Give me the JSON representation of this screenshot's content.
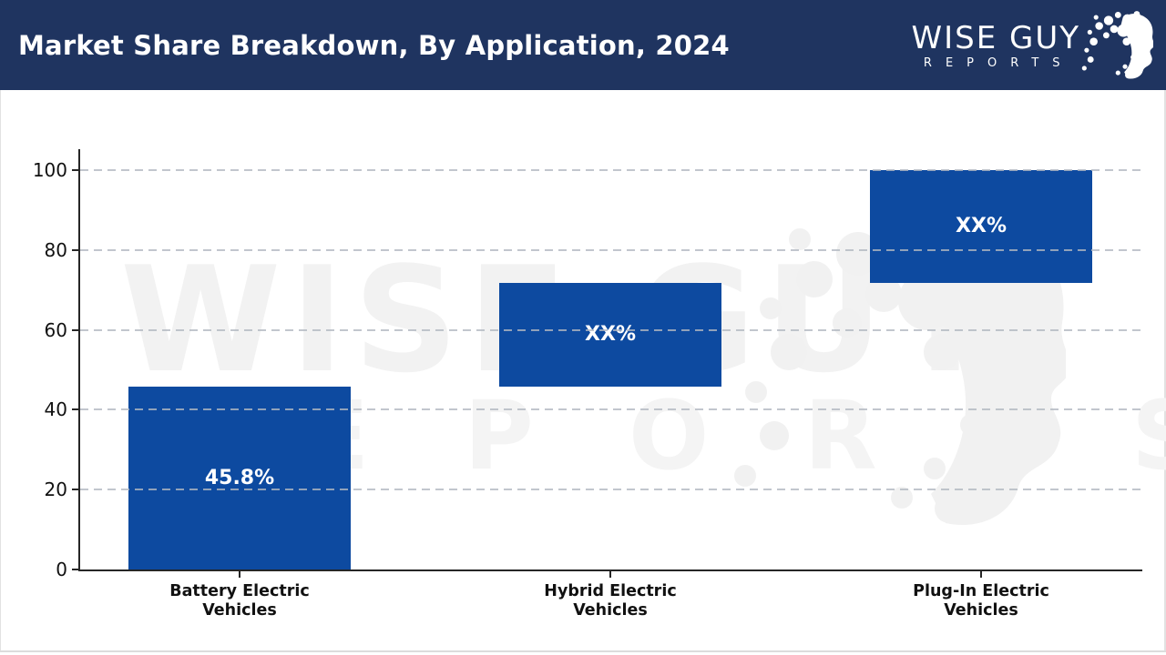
{
  "header": {
    "title": "Market Share Breakdown, By Application, 2024",
    "background_color": "#1f3460",
    "logo": {
      "line1": "WISE GUY",
      "line2": "REPORTS"
    }
  },
  "watermark": {
    "line1": "WISE GUY",
    "line2": "R E P O R T S"
  },
  "chart_data": {
    "type": "bar",
    "subtype": "waterfall",
    "title": "Market Share Breakdown, By Application, 2024",
    "categories": [
      "Battery Electric Vehicles",
      "Hybrid Electric Vehicles",
      "Plug-In Electric Vehicles"
    ],
    "category_lines": [
      [
        "Battery Electric",
        "Vehicles"
      ],
      [
        "Hybrid Electric",
        "Vehicles"
      ],
      [
        "Plug-In Electric",
        "Vehicles"
      ]
    ],
    "segments": [
      {
        "category": "Battery Electric Vehicles",
        "start": 0,
        "end": 45.8,
        "label": "45.8%"
      },
      {
        "category": "Hybrid Electric Vehicles",
        "start": 45.8,
        "end": 71.8,
        "label": "XX%"
      },
      {
        "category": "Plug-In Electric Vehicles",
        "start": 71.8,
        "end": 100,
        "label": "XX%"
      }
    ],
    "y_ticks": [
      0,
      20,
      40,
      60,
      80,
      100
    ],
    "ylim": [
      0,
      100
    ],
    "xlabel": "",
    "ylabel": "",
    "grid": "horizontal dashed, drawn above bars",
    "legend": "none",
    "bar_color": "#0d4aa0",
    "bar_label_color": "#ffffff",
    "axis_color": "#262626",
    "grid_color": "#b2b8c1"
  }
}
